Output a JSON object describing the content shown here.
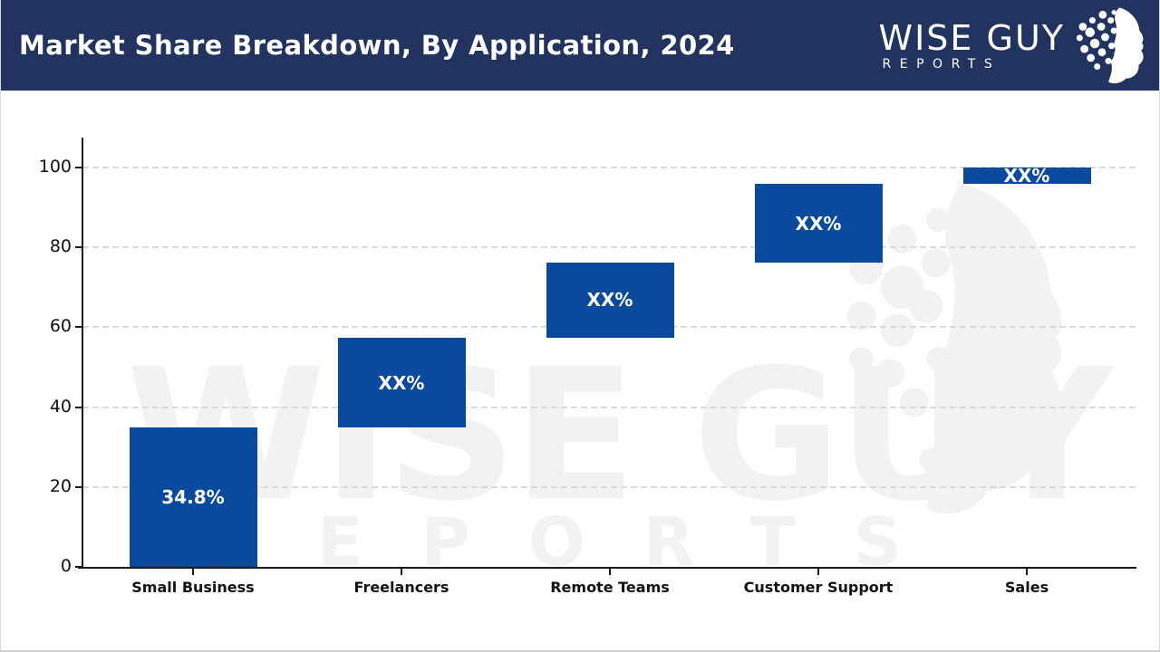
{
  "header": {
    "title": "Market Share Breakdown, By Application, 2024",
    "bg_color": "#21335E",
    "logo": {
      "brand": "WISE GUY",
      "sub": "REPORTS"
    }
  },
  "watermark": {
    "line1": "WISE GUY",
    "line2": "REPORTS"
  },
  "chart_data": {
    "type": "bar",
    "subtype": "waterfall",
    "title": "Market Share Breakdown, By Application, 2024",
    "categories": [
      "Small Business",
      "Freelancers",
      "Remote Teams",
      "Customer Support",
      "Sales"
    ],
    "series": [
      {
        "name": "Market share (%)",
        "segments": [
          {
            "category": "Small Business",
            "start": 0,
            "end": 34.8,
            "label": "34.8%"
          },
          {
            "category": "Freelancers",
            "start": 34.8,
            "end": 57.4,
            "label": "XX%"
          },
          {
            "category": "Remote Teams",
            "start": 57.4,
            "end": 76.1,
            "label": "XX%"
          },
          {
            "category": "Customer Support",
            "start": 76.1,
            "end": 95.9,
            "label": "XX%"
          },
          {
            "category": "Sales",
            "start": 95.9,
            "end": 100,
            "label": "XX%"
          }
        ]
      }
    ],
    "ylim": [
      0,
      100
    ],
    "yticks": [
      0,
      20,
      40,
      60,
      80,
      100
    ],
    "grid": "horizontal-dashed",
    "legend": "none",
    "bar_color": "#0A4A9E",
    "bar_label_color": "#FFFFFF",
    "axis_color": "#1A1A1A"
  }
}
